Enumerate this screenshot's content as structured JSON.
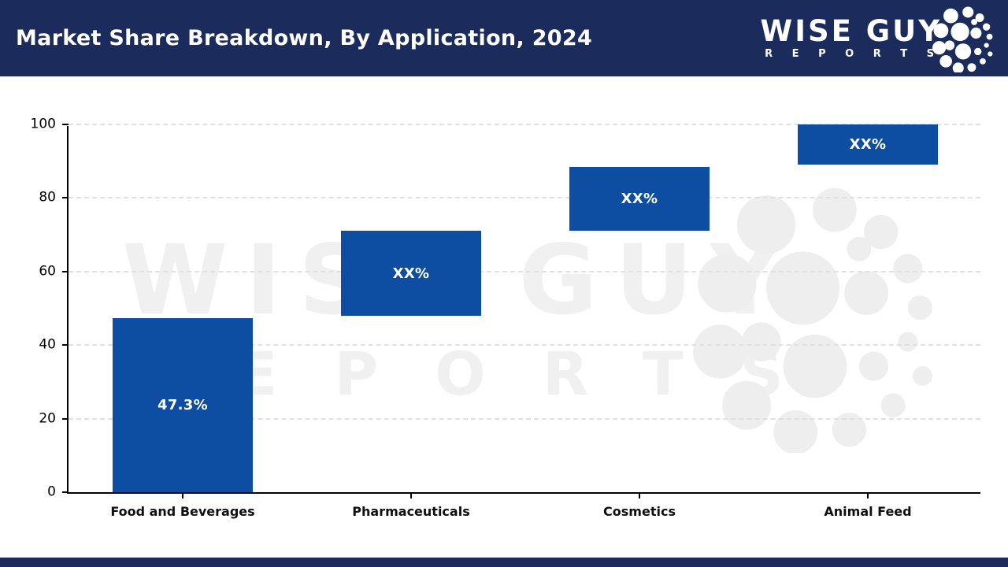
{
  "header": {
    "title": "Market Share Breakdown, By Application, 2024",
    "logo": {
      "line1": "WISE GUY",
      "line2": "R E P O R T S"
    }
  },
  "watermark": {
    "line1": "WISE GUY",
    "line2": "REPORTS"
  },
  "chart_data": {
    "type": "bar",
    "subtype": "waterfall",
    "title": "Market Share Breakdown, By Application, 2024",
    "xlabel": "",
    "ylabel": "",
    "ylim": [
      0,
      100
    ],
    "yticks": [
      0,
      20,
      40,
      60,
      80,
      100
    ],
    "grid": true,
    "grid_style": "dashed",
    "bar_color": "#0d4da2",
    "label_color": "#ffffff",
    "categories": [
      "Food and Beverages",
      "Pharmaceuticals",
      "Cosmetics",
      "Animal Feed"
    ],
    "segments": [
      {
        "category": "Food and Beverages",
        "start": 0,
        "end": 47.3,
        "label": "47.3%"
      },
      {
        "category": "Pharmaceuticals",
        "start": 48,
        "end": 71,
        "label": "XX%"
      },
      {
        "category": "Cosmetics",
        "start": 71,
        "end": 88.5,
        "label": "XX%"
      },
      {
        "category": "Animal Feed",
        "start": 89,
        "end": 100,
        "label": "XX%"
      }
    ]
  }
}
